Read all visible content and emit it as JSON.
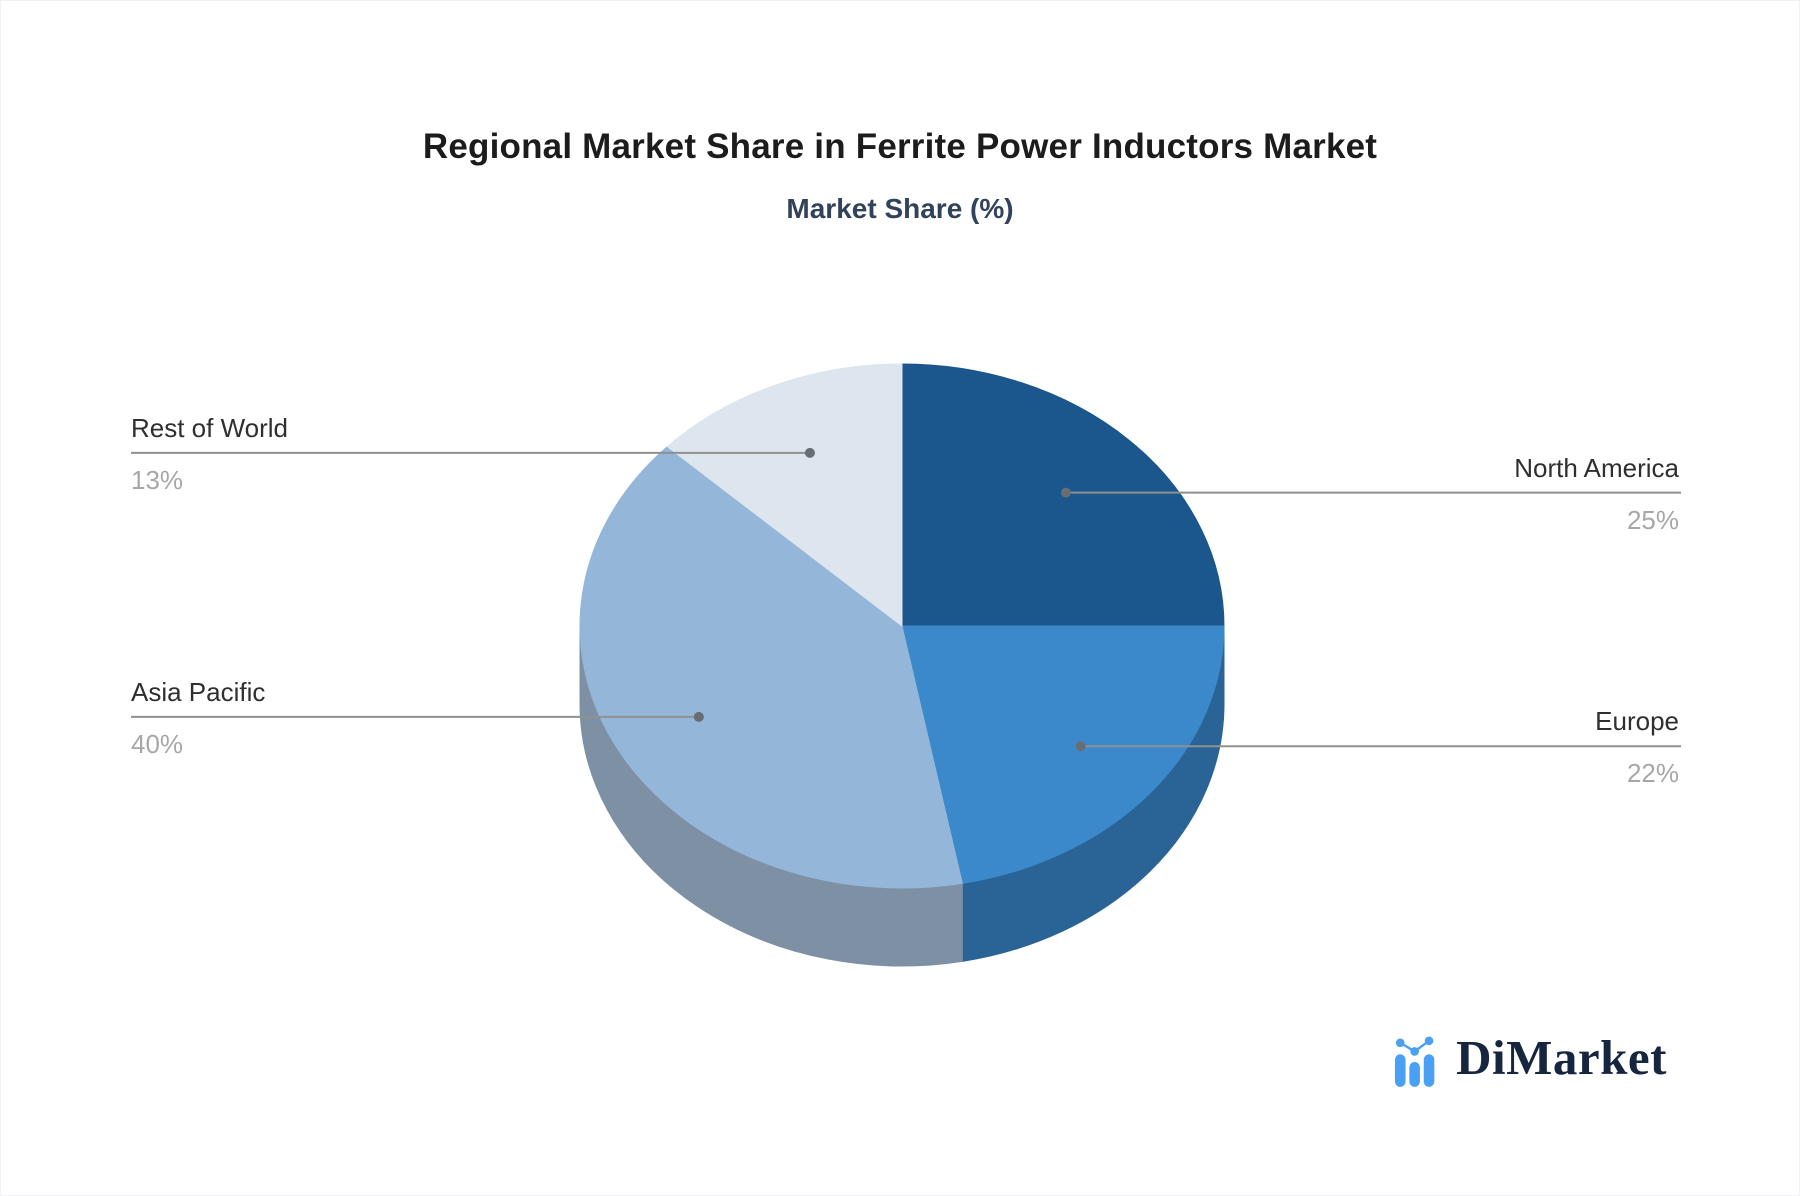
{
  "title": "Regional Market Share in Ferrite Power Inductors Market",
  "subtitle": "Market Share (%)",
  "brand": {
    "name": "DiMarket",
    "icon": "bar-line-chart-icon",
    "icon_color": "#4aa0f2",
    "text_color": "#16263f"
  },
  "chart_data": {
    "type": "pie",
    "title": "Regional Market Share in Ferrite Power Inductors Market",
    "subtitle": "Market Share (%)",
    "unit": "%",
    "is_3d": true,
    "direction": "clockwise",
    "start_angle_deg": 0,
    "slices": [
      {
        "label": "North America",
        "value": 25,
        "pct_label": "25%",
        "color": "#1b568c",
        "side_color": "#24619b",
        "label_side": "right"
      },
      {
        "label": "Europe",
        "value": 22,
        "pct_label": "22%",
        "color": "#3b89ca",
        "side_color": "#2a6496",
        "label_side": "right"
      },
      {
        "label": "Asia Pacific",
        "value": 40,
        "pct_label": "40%",
        "color": "#94b6d9",
        "side_color": "#7d90a4",
        "label_side": "left"
      },
      {
        "label": "Rest of World",
        "value": 13,
        "pct_label": "13%",
        "color": "#dde5ee",
        "side_color": "#b8c2cf",
        "label_side": "left"
      }
    ],
    "legend": "none",
    "label_name_color": "#2f2f2f",
    "label_pct_color": "#a7a7a7",
    "leader_line_color": "#909090",
    "leader_dot_color": "#666d73"
  }
}
